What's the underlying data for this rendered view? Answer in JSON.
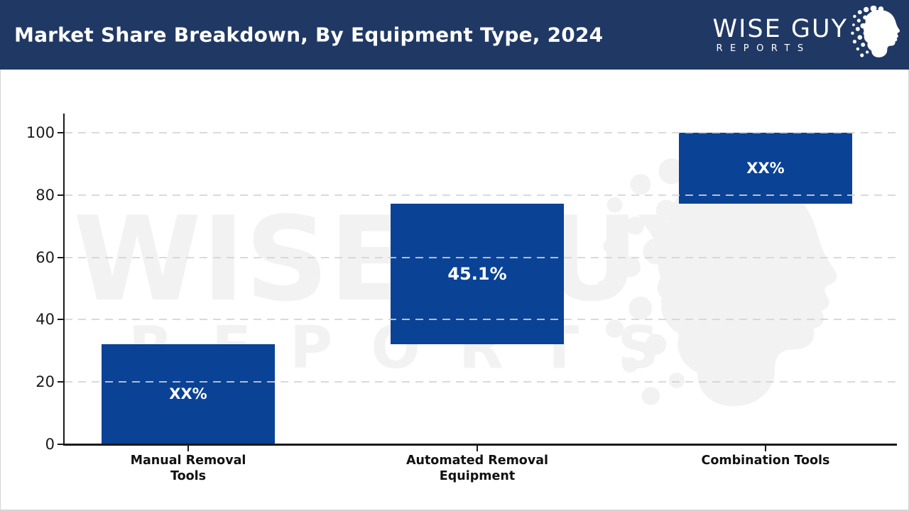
{
  "header": {
    "title": "Market Share Breakdown, By Equipment Type, 2024",
    "bg_color": "#203864",
    "logo": {
      "wordmark": "WISE GUY",
      "subtext": "REPORTS"
    }
  },
  "watermark": {
    "line1": "WISE GUY",
    "line2": "REPORTS"
  },
  "chart_data": {
    "type": "bar",
    "variant": "waterfall",
    "title": "Market Share Breakdown, By Equipment Type, 2024",
    "categories": [
      "Manual Removal Tools",
      "Automated Removal Equipment",
      "Combination Tools"
    ],
    "category_label_lines": [
      [
        "Manual Removal",
        "Tools"
      ],
      [
        "Automated Removal",
        "Equipment"
      ],
      [
        "Combination Tools"
      ]
    ],
    "bars": [
      {
        "category": "Manual Removal Tools",
        "base": 0,
        "top": 32.2,
        "height": 32.2,
        "value_label": "XX%"
      },
      {
        "category": "Automated Removal Equipment",
        "base": 32.2,
        "top": 77.3,
        "height": 45.1,
        "value_label": "45.1%"
      },
      {
        "category": "Combination Tools",
        "base": 77.3,
        "top": 100,
        "height": 22.7,
        "value_label": "XX%"
      }
    ],
    "xlabel": "",
    "ylabel": "",
    "ylim": [
      0,
      105
    ],
    "yticks": [
      0,
      20,
      40,
      60,
      80,
      100
    ],
    "grid": "horizontal-dashed",
    "legend": "none",
    "colors": {
      "bar": "#0a4296",
      "grid": "#d4d4d4",
      "axis": "#1a1a1a",
      "value_label": "#ffffff",
      "header_bg": "#203864",
      "watermark": "#f2f2f2"
    }
  }
}
